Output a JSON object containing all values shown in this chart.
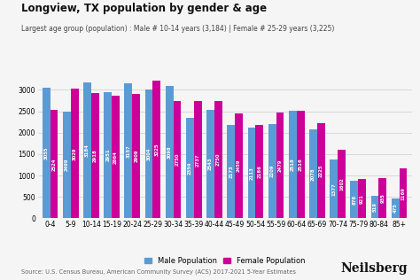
{
  "title": "Longview, TX population by gender & age",
  "subtitle": "Largest age group (population) : Male # 10-14 years (3,184) | Female # 25-29 years (3,225)",
  "source": "Source: U.S. Census Bureau, American Community Survey (ACS) 2017-2021 5-Year Estimates",
  "brand": "Neilsberg",
  "categories": [
    "0-4",
    "5-9",
    "10-14",
    "15-19",
    "20-24",
    "25-29",
    "30-34",
    "35-39",
    "40-44",
    "45-49",
    "50-54",
    "55-59",
    "60-64",
    "65-69",
    "70-74",
    "75-79",
    "80-84",
    "85+"
  ],
  "male_values": [
    3055,
    2499,
    3184,
    2951,
    3157,
    3004,
    3098,
    2354,
    2543,
    2173,
    2113,
    2209,
    2518,
    2078,
    1377,
    878,
    519,
    475
  ],
  "female_values": [
    2524,
    3029,
    2918,
    2864,
    2909,
    3225,
    2750,
    2737,
    2750,
    2459,
    2186,
    2479,
    2516,
    2225,
    1602,
    921,
    935,
    1169
  ],
  "male_color": "#5B9BD5",
  "female_color": "#CC0099",
  "background_color": "#f5f5f5",
  "plot_bg_color": "#f5f5f5",
  "ylim": [
    0,
    3400
  ],
  "yticks": [
    0,
    500,
    1000,
    1500,
    2000,
    2500,
    3000
  ],
  "legend_labels": [
    "Male Population",
    "Female Population"
  ],
  "bar_width": 0.38,
  "title_fontsize": 8.5,
  "subtitle_fontsize": 5.5,
  "axis_fontsize": 5.5,
  "label_fontsize": 3.8,
  "source_fontsize": 4.8,
  "brand_fontsize": 10
}
